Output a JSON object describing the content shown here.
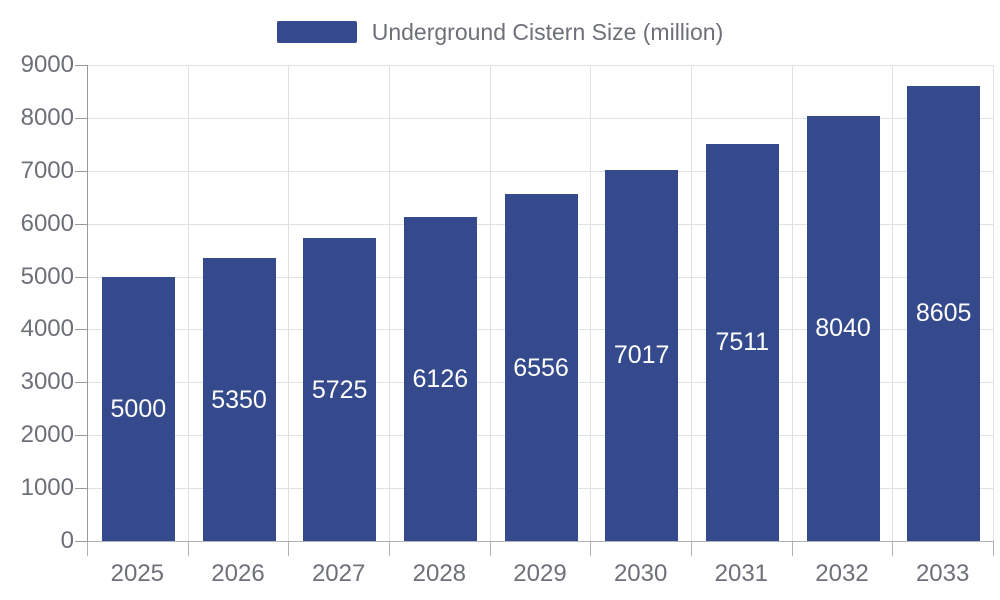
{
  "chart_data": {
    "type": "bar",
    "title": "",
    "legend": "Underground Cistern Size (million)",
    "legend_position": "top",
    "categories": [
      "2025",
      "2026",
      "2027",
      "2028",
      "2029",
      "2030",
      "2031",
      "2032",
      "2033"
    ],
    "series": [
      {
        "name": "Underground Cistern Size (million)",
        "values": [
          5000,
          5350,
          5725,
          6126,
          6556,
          7017,
          7511,
          8040,
          8605
        ]
      }
    ],
    "data_labels": [
      "5000",
      "5350",
      "5725",
      "6126",
      "6556",
      "7017",
      "7511",
      "8040",
      "8605"
    ],
    "xlabel": "",
    "ylabel": "",
    "ylim": [
      0,
      9000
    ],
    "ytick_interval": 1000,
    "ytick_labels": [
      "0",
      "1000",
      "2000",
      "3000",
      "4000",
      "5000",
      "6000",
      "7000",
      "8000",
      "9000"
    ],
    "grid": true,
    "colors": {
      "bar": "#344a8c",
      "bar_label": "#ffffff",
      "axis_text": "#6e7079",
      "gridline": "#e0e0e6",
      "y_axis_line": "#999999",
      "x_axis_line": "#b1b1b8",
      "background": "#ffffff"
    }
  }
}
